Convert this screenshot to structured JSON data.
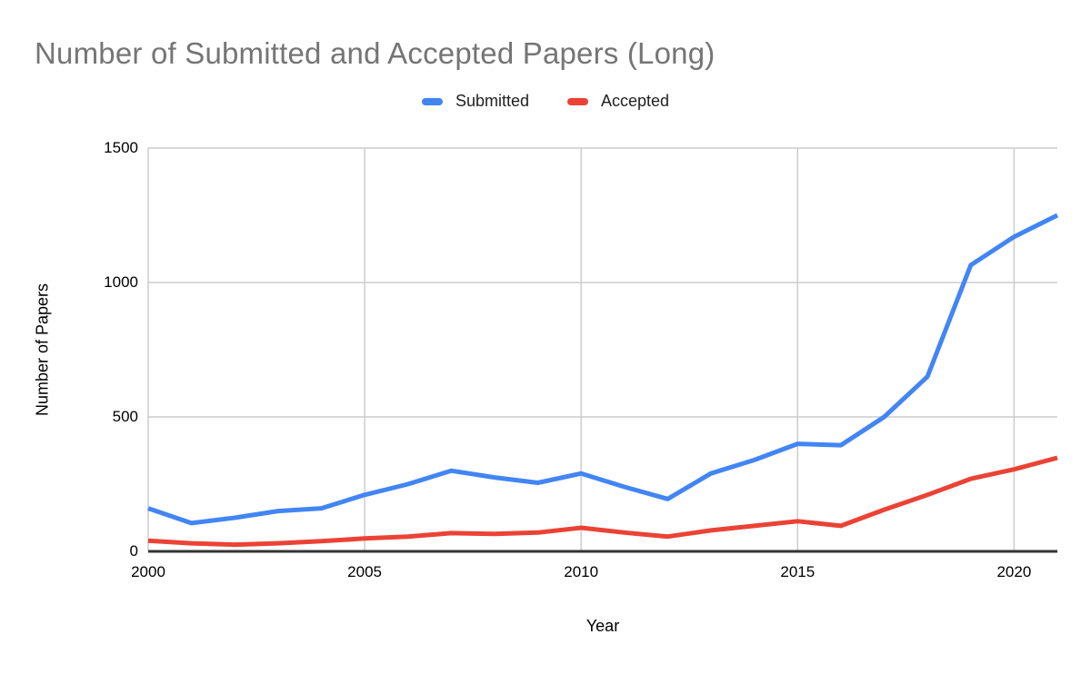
{
  "title": "Number of Submitted and Accepted Papers (Long)",
  "legend": {
    "position": "top-center",
    "items": [
      {
        "label": "Submitted",
        "color": "#4285F4"
      },
      {
        "label": "Accepted",
        "color": "#EA4335"
      }
    ]
  },
  "chart_data": {
    "type": "line",
    "title": "Number of Submitted and Accepted Papers (Long)",
    "xlabel": "Year",
    "ylabel": "Number of Papers",
    "x": [
      2000,
      2001,
      2002,
      2003,
      2004,
      2005,
      2006,
      2007,
      2008,
      2009,
      2010,
      2011,
      2012,
      2013,
      2014,
      2015,
      2016,
      2017,
      2018,
      2019,
      2020,
      2021
    ],
    "series": [
      {
        "name": "Submitted",
        "color": "#4285F4",
        "values": [
          160,
          105,
          125,
          150,
          160,
          210,
          250,
          300,
          275,
          255,
          290,
          240,
          195,
          290,
          340,
          400,
          395,
          500,
          650,
          1065,
          1170,
          1250
        ]
      },
      {
        "name": "Accepted",
        "color": "#EA4335",
        "values": [
          40,
          30,
          25,
          30,
          38,
          48,
          55,
          68,
          65,
          70,
          88,
          70,
          55,
          78,
          95,
          112,
          95,
          155,
          210,
          270,
          305,
          348
        ]
      }
    ],
    "xlim": [
      2000,
      2021
    ],
    "ylim": [
      0,
      1500
    ],
    "xticks": [
      2000,
      2005,
      2010,
      2015,
      2020
    ],
    "yticks": [
      0,
      500,
      1000,
      1500
    ],
    "grid": true,
    "legend_position": "top"
  },
  "style": {
    "title_color": "#757575",
    "tick_color": "#000000",
    "gridline_color": "#cccccc",
    "axis_line_color": "#333333",
    "background": "#ffffff",
    "line_width": 5
  }
}
